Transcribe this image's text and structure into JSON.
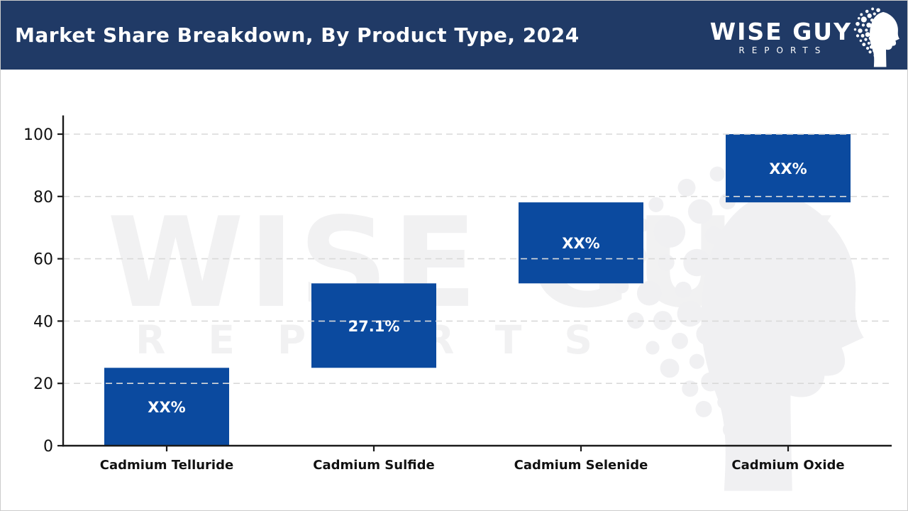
{
  "page": {
    "bg_color": "#ffffff",
    "border_color": "#cccccc"
  },
  "header": {
    "title": "Market Share Breakdown, By Product Type, 2024",
    "bg_color": "#203a66",
    "text_color": "#ffffff",
    "logo": {
      "name": "WISE GUY",
      "sub": "REPORTS"
    }
  },
  "watermark": {
    "line1": "WISE GUY",
    "line2": "REPORTS"
  },
  "chart_data": {
    "type": "bar",
    "subtype": "waterfall",
    "title": "Market Share Breakdown, By Product Type, 2024",
    "categories": [
      "Cadmium Telluride",
      "Cadmium Sulfide",
      "Cadmium Selenide",
      "Cadmium Oxide"
    ],
    "bars": [
      {
        "category": "Cadmium Telluride",
        "start": 0,
        "end": 25.0,
        "label": "XX%"
      },
      {
        "category": "Cadmium Sulfide",
        "start": 25.0,
        "end": 52.1,
        "label": "27.1%"
      },
      {
        "category": "Cadmium Selenide",
        "start": 52.1,
        "end": 78.1,
        "label": "XX%"
      },
      {
        "category": "Cadmium Oxide",
        "start": 78.1,
        "end": 100.0,
        "label": "XX%"
      }
    ],
    "yticks": [
      0,
      20,
      40,
      60,
      80,
      100
    ],
    "ylim": [
      0,
      106
    ],
    "xlabel": "",
    "ylabel": "",
    "grid": {
      "axis": "y",
      "style": "dashed",
      "color": "#d9d9d9"
    },
    "legend": "none",
    "bar_color": "#0b4a9f",
    "bar_label_color": "#ffffff",
    "axis_color": "#1a1a1a"
  }
}
